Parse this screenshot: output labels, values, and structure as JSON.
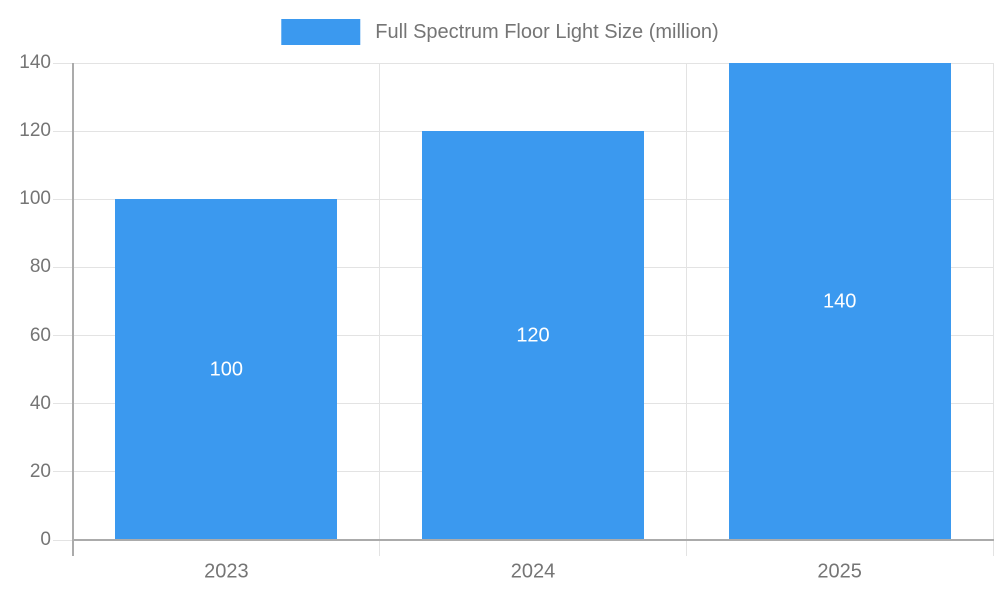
{
  "legend": {
    "label": "Full Spectrum Floor Light Size (million)"
  },
  "chart_data": {
    "type": "bar",
    "title": "Full Spectrum Floor Light Size (million)",
    "categories": [
      "2023",
      "2024",
      "2025"
    ],
    "values": [
      100,
      120,
      140
    ],
    "series": [
      {
        "name": "Full Spectrum Floor Light Size (million)",
        "values": [
          100,
          120,
          140
        ]
      }
    ],
    "yticks": [
      0,
      20,
      40,
      60,
      80,
      100,
      120,
      140
    ],
    "ylim": [
      0,
      140
    ],
    "xlabel": "",
    "ylabel": "",
    "grid": true,
    "legend_position": "top",
    "colors": {
      "bar": "#3B99EF",
      "grid": "#E3E3E3",
      "axis_line": "#ABABAB",
      "text": "#757575",
      "data_label": "#FFFFFF",
      "background": "#FFFFFF"
    }
  }
}
